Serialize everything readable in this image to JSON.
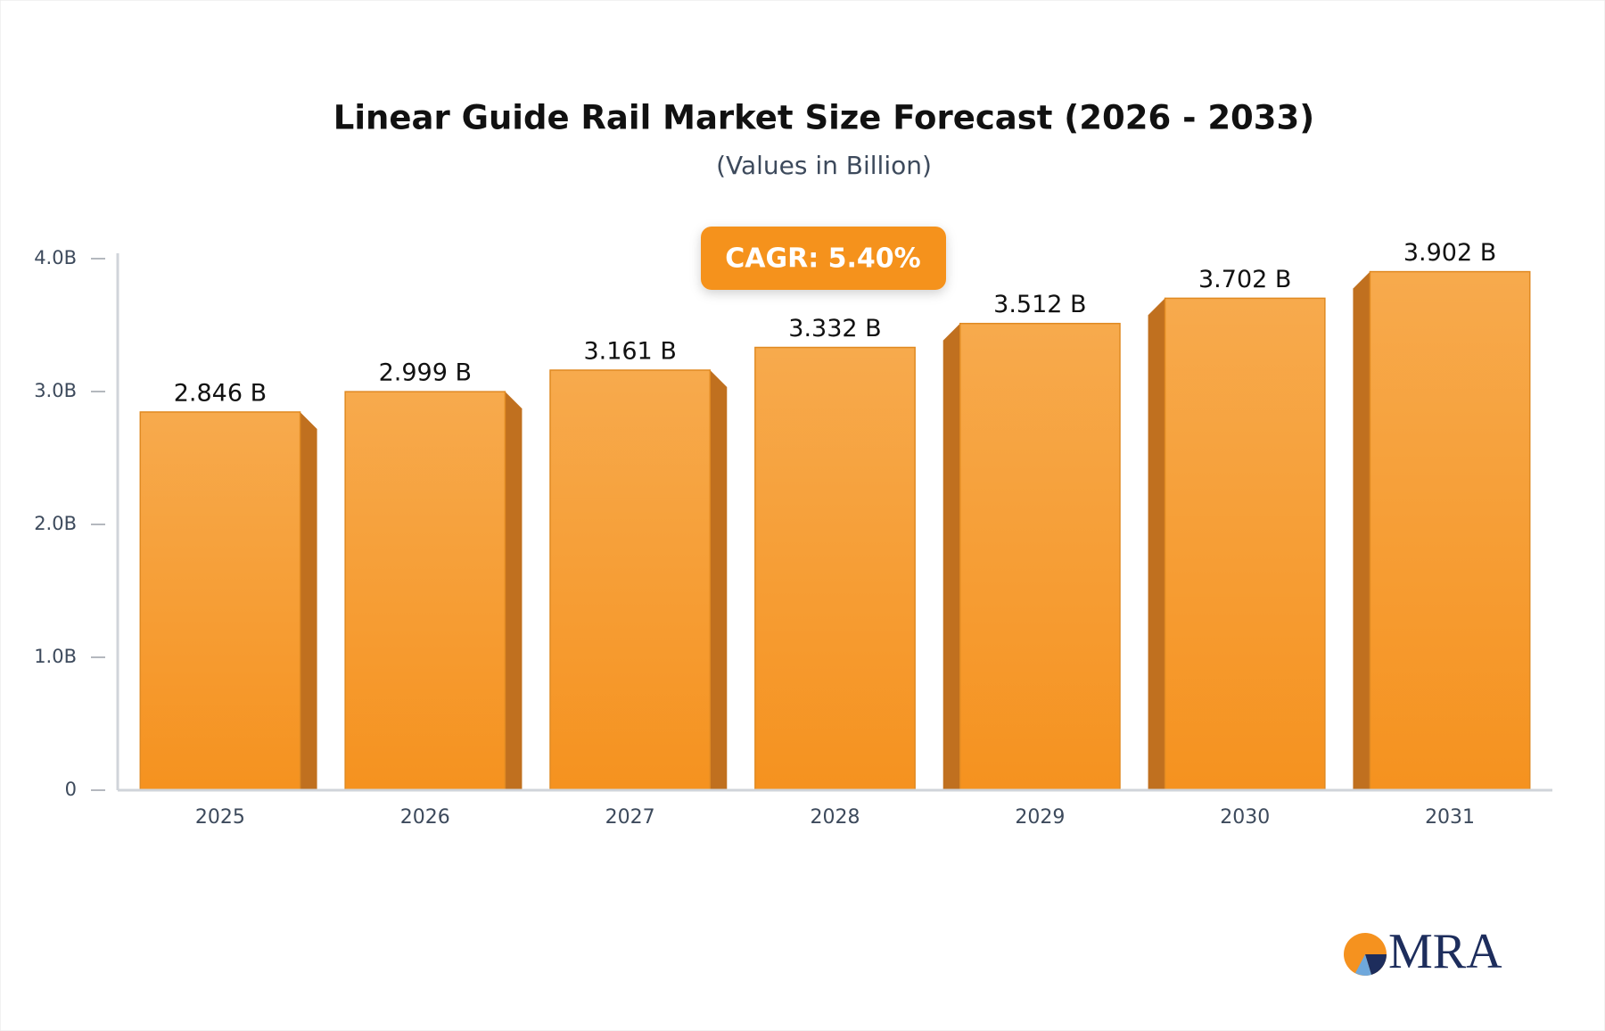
{
  "chart_data": {
    "type": "bar",
    "title": "Linear Guide Rail Market Size Forecast (2026 - 2033)",
    "subtitle": "(Values in Billion)",
    "annotation": "CAGR: 5.40%",
    "categories": [
      "2025",
      "2026",
      "2027",
      "2028",
      "2029",
      "2030",
      "2031"
    ],
    "values": [
      2.846,
      2.999,
      3.161,
      3.332,
      3.512,
      3.702,
      3.902
    ],
    "value_labels": [
      "2.846 B",
      "2.999 B",
      "3.161 B",
      "3.332 B",
      "3.512 B",
      "3.702 B",
      "3.902 B"
    ],
    "color": "#f59a2e",
    "ylim": [
      0,
      4
    ],
    "yticks": [
      0,
      {
        "value": 1,
        "label": "1.0B"
      },
      {
        "value": 2,
        "label": "2.0B"
      },
      {
        "value": 3,
        "label": "3.0B"
      },
      {
        "value": 4,
        "label": "4.0B"
      }
    ],
    "grid": false
  },
  "logo": "MRA"
}
